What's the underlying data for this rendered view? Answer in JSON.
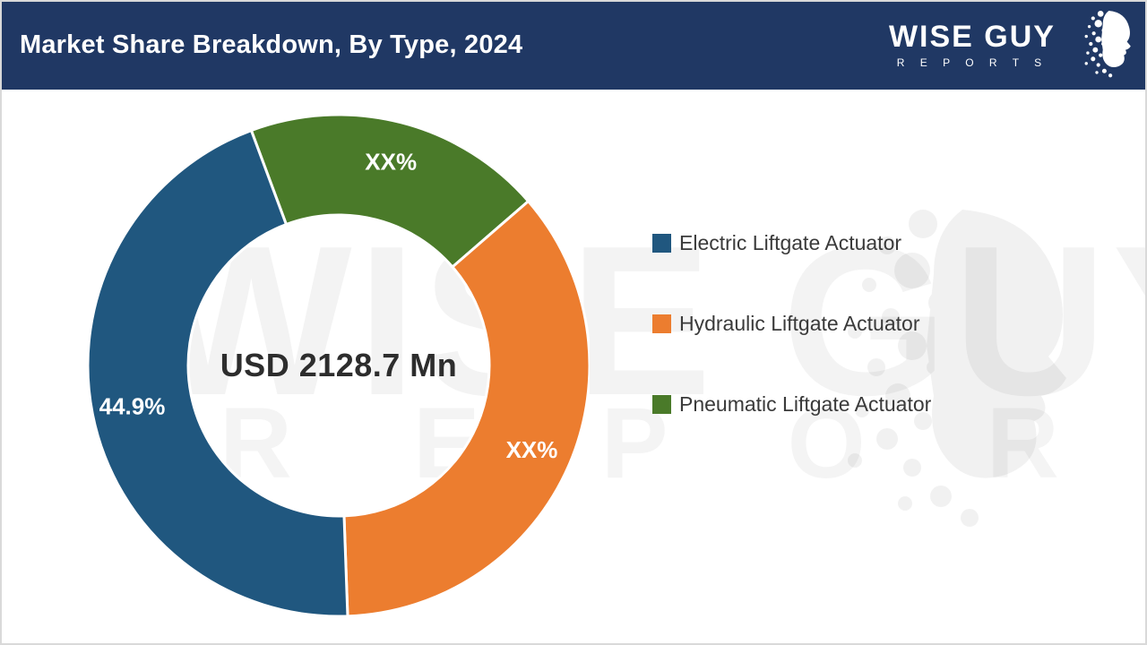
{
  "header": {
    "title": "Market Share Breakdown, By Type, 2024",
    "bg_color": "#203864",
    "logo": {
      "line1": "WISE GUY",
      "line2": "R E P O R T S"
    }
  },
  "chart_data": {
    "type": "pie",
    "subtype": "donut",
    "title": "Market Share Breakdown, By Type, 2024",
    "center_label": "USD 2128.7 Mn",
    "start_angle_deg": 339.6,
    "legend_position": "right",
    "segments": [
      {
        "name": "Pneumatic Liftgate Actuator",
        "value_pct": 19.3,
        "label": "XX%",
        "color": "#4a7a29"
      },
      {
        "name": "Hydraulic Liftgate Actuator",
        "value_pct": 35.8,
        "label": "XX%",
        "color": "#ec7d2f"
      },
      {
        "name": "Electric Liftgate Actuator",
        "value_pct": 44.9,
        "label": "44.9%",
        "color": "#20577f"
      }
    ]
  },
  "legend": {
    "items": [
      {
        "label": "Electric Liftgate Actuator",
        "color": "#20577f"
      },
      {
        "label": "Hydraulic Liftgate Actuator",
        "color": "#ec7d2f"
      },
      {
        "label": "Pneumatic Liftgate Actuator",
        "color": "#4a7a29"
      }
    ]
  },
  "watermark": {
    "line1": "WISE GUY",
    "line2": "R E P O R T S"
  },
  "colors": {
    "header_navy": "#203864",
    "border_gray": "#d9d9d9",
    "center_text": "#2d2d2d"
  }
}
